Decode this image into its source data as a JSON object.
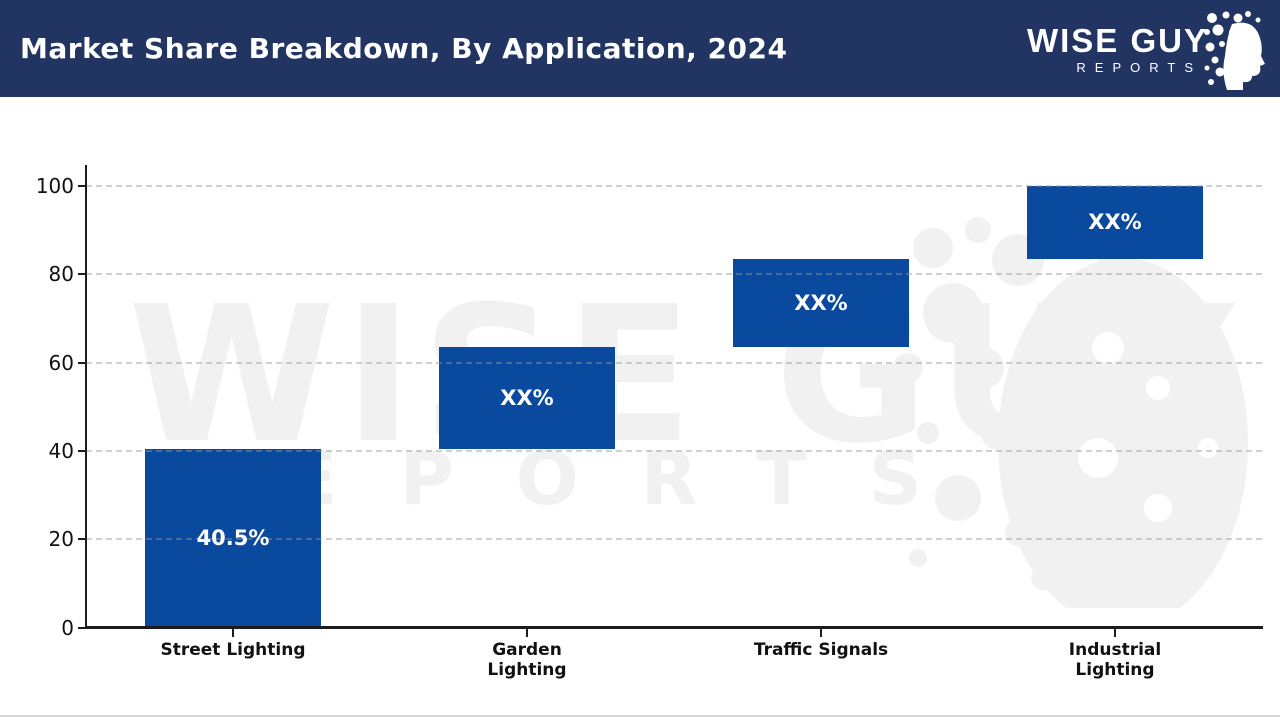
{
  "header": {
    "title": "Market Share Breakdown, By Application, 2024",
    "logo_line1": "WISE GUY",
    "logo_line2": "REPORTS"
  },
  "watermark": {
    "line1": "WISE GUY",
    "line2": "REPORTS"
  },
  "palette": {
    "header_bg": "#213462",
    "bar_blue": "#0a4a9e",
    "grid_gray": "#dcdcdc",
    "axis_black": "#1c1c1c",
    "watermark_gray": "#f1f1f1",
    "label_white": "#ffffff"
  },
  "chart_data": {
    "type": "bar",
    "subtype": "waterfall",
    "title": "Market Share Breakdown, By Application, 2024",
    "categories": [
      "Street Lighting",
      "Garden Lighting",
      "Traffic Signals",
      "Industrial Lighting"
    ],
    "segments": [
      {
        "category": "Street Lighting",
        "start": 0,
        "end": 40.5,
        "label": "40.5%"
      },
      {
        "category": "Garden Lighting",
        "start": 40.5,
        "end": 63.5,
        "label": "XX%"
      },
      {
        "category": "Traffic Signals",
        "start": 63.5,
        "end": 83.5,
        "label": "XX%"
      },
      {
        "category": "Industrial Lighting",
        "start": 83.5,
        "end": 100,
        "label": "XX%"
      }
    ],
    "values": [
      40.5,
      23,
      20,
      16.5
    ],
    "bar_labels": [
      "40.5%",
      "XX%",
      "XX%",
      "XX%"
    ],
    "xlabel": "",
    "ylabel": "",
    "ylim": [
      0,
      100
    ],
    "yticks": [
      0,
      20,
      40,
      60,
      80,
      100
    ],
    "grid": "dashed-horizontal-over-bars",
    "legend": "none"
  }
}
